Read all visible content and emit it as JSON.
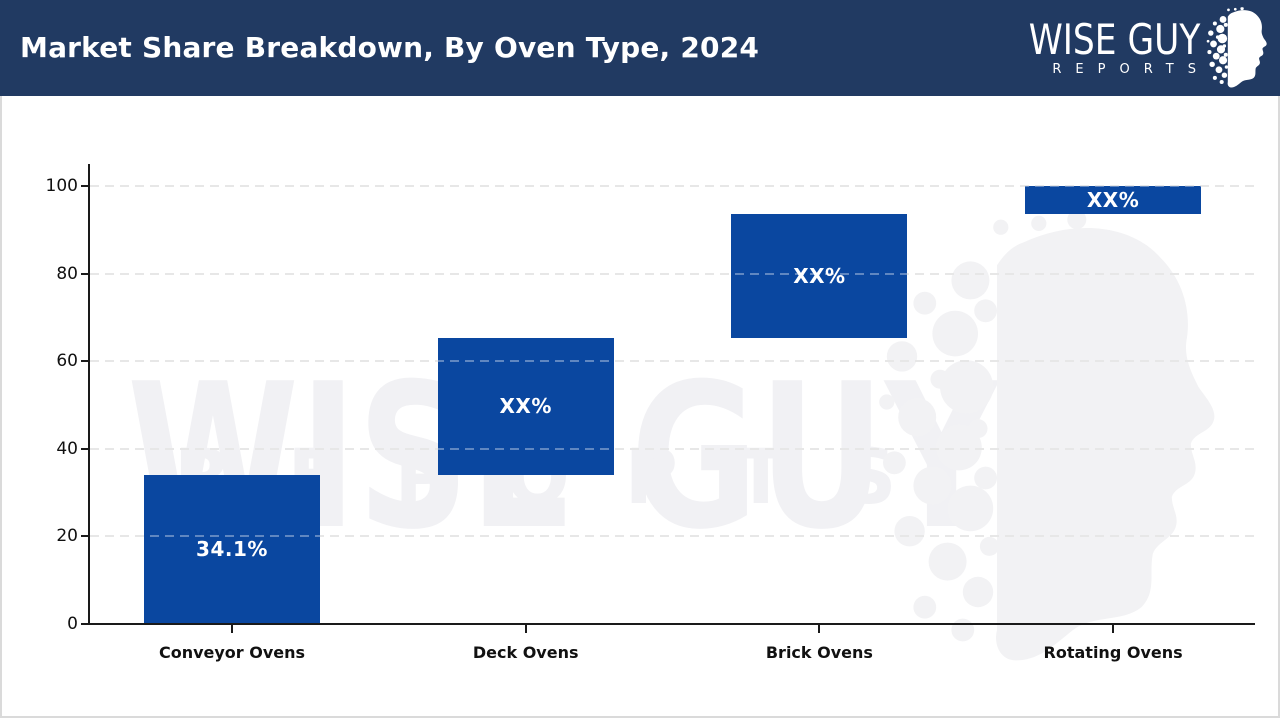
{
  "header": {
    "title": "Market Share Breakdown, By Oven Type, 2024",
    "bg_color": "#213A62",
    "logo": {
      "name": "WISE GUY",
      "sub": "REPORTS"
    }
  },
  "watermark": {
    "line1": "WISE GUY",
    "line2": "REPORTS"
  },
  "chart_data": {
    "type": "bar",
    "subtype": "waterfall",
    "title": "Market Share Breakdown, By Oven Type, 2024",
    "categories": [
      "Conveyor Ovens",
      "Deck Ovens",
      "Brick Ovens",
      "Rotating Ovens"
    ],
    "values": [
      34.1,
      31.2,
      28.2,
      6.5
    ],
    "segments": [
      {
        "category": "Conveyor Ovens",
        "base": 0,
        "top": 34.1,
        "label": "34.1%"
      },
      {
        "category": "Deck Ovens",
        "base": 34.1,
        "top": 65.3,
        "label": "XX%"
      },
      {
        "category": "Brick Ovens",
        "base": 65.3,
        "top": 93.5,
        "label": "XX%"
      },
      {
        "category": "Rotating Ovens",
        "base": 93.5,
        "top": 100,
        "label": "XX%"
      }
    ],
    "yticks": [
      "0",
      "20",
      "40",
      "60",
      "80",
      "100"
    ],
    "ylim": [
      0,
      105
    ],
    "grid": true,
    "grid_style": "dashed",
    "legend": false,
    "bar_color": "#0A47A0",
    "label_color": "#ffffff"
  }
}
